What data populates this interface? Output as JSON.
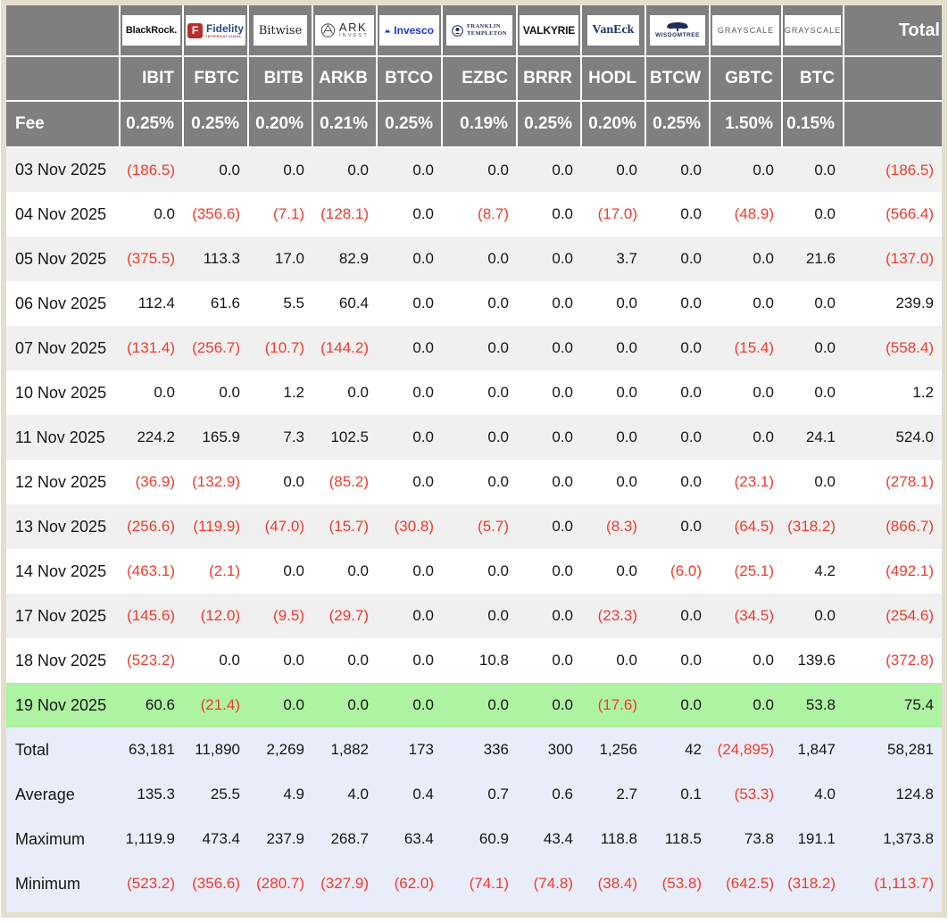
{
  "colors": {
    "header_bg": "#7f7f7f",
    "neg": "#f03b2c",
    "highlight": "#adf3a2",
    "stripe": "#f0f0f0",
    "summary_bg": "#e9edf9",
    "frame": "#e4decb"
  },
  "table": {
    "labels": {
      "fee": "Fee",
      "total": "Total"
    },
    "logos": [
      {
        "id": "blackrock",
        "text": "BlackRock."
      },
      {
        "id": "fidelity",
        "icon_letter": "F",
        "text": "Fidelity",
        "sub": "INTERNATIONAL"
      },
      {
        "id": "bitwise",
        "text": "Bitwise"
      },
      {
        "id": "ark-invest",
        "text": "ARK",
        "sub": "INVEST"
      },
      {
        "id": "invesco",
        "text": "Invesco"
      },
      {
        "id": "franklin-templeton",
        "text": "FRANKLIN",
        "sub": "TEMPLETON"
      },
      {
        "id": "valkyrie",
        "text": "VALKYRIE"
      },
      {
        "id": "vaneck",
        "text": "VanEck"
      },
      {
        "id": "wisdomtree",
        "text": "WISDOMTREE"
      },
      {
        "id": "grayscale",
        "text": "GRAYSCALE"
      },
      {
        "id": "grayscale-mini",
        "text": "GRAYSCALE"
      }
    ],
    "columns": [
      {
        "ticker": "IBIT",
        "fee": "0.25%"
      },
      {
        "ticker": "FBTC",
        "fee": "0.25%"
      },
      {
        "ticker": "BITB",
        "fee": "0.20%"
      },
      {
        "ticker": "ARKB",
        "fee": "0.21%"
      },
      {
        "ticker": "BTCO",
        "fee": "0.25%"
      },
      {
        "ticker": "EZBC",
        "fee": "0.19%"
      },
      {
        "ticker": "BRRR",
        "fee": "0.25%"
      },
      {
        "ticker": "HODL",
        "fee": "0.20%"
      },
      {
        "ticker": "BTCW",
        "fee": "0.25%"
      },
      {
        "ticker": "GBTC",
        "fee": "1.50%"
      },
      {
        "ticker": "BTC",
        "fee": "0.15%"
      }
    ],
    "rows": [
      {
        "date": "03 Nov 2025",
        "values": [
          "(186.5)",
          "0.0",
          "0.0",
          "0.0",
          "0.0",
          "0.0",
          "0.0",
          "0.0",
          "0.0",
          "0.0",
          "0.0",
          "(186.5)"
        ]
      },
      {
        "date": "04 Nov 2025",
        "values": [
          "0.0",
          "(356.6)",
          "(7.1)",
          "(128.1)",
          "0.0",
          "(8.7)",
          "0.0",
          "(17.0)",
          "0.0",
          "(48.9)",
          "0.0",
          "(566.4)"
        ]
      },
      {
        "date": "05 Nov 2025",
        "values": [
          "(375.5)",
          "113.3",
          "17.0",
          "82.9",
          "0.0",
          "0.0",
          "0.0",
          "3.7",
          "0.0",
          "0.0",
          "21.6",
          "(137.0)"
        ]
      },
      {
        "date": "06 Nov 2025",
        "values": [
          "112.4",
          "61.6",
          "5.5",
          "60.4",
          "0.0",
          "0.0",
          "0.0",
          "0.0",
          "0.0",
          "0.0",
          "0.0",
          "239.9"
        ]
      },
      {
        "date": "07 Nov 2025",
        "values": [
          "(131.4)",
          "(256.7)",
          "(10.7)",
          "(144.2)",
          "0.0",
          "0.0",
          "0.0",
          "0.0",
          "0.0",
          "(15.4)",
          "0.0",
          "(558.4)"
        ]
      },
      {
        "date": "10 Nov 2025",
        "values": [
          "0.0",
          "0.0",
          "1.2",
          "0.0",
          "0.0",
          "0.0",
          "0.0",
          "0.0",
          "0.0",
          "0.0",
          "0.0",
          "1.2"
        ]
      },
      {
        "date": "11 Nov 2025",
        "values": [
          "224.2",
          "165.9",
          "7.3",
          "102.5",
          "0.0",
          "0.0",
          "0.0",
          "0.0",
          "0.0",
          "0.0",
          "24.1",
          "524.0"
        ]
      },
      {
        "date": "12 Nov 2025",
        "values": [
          "(36.9)",
          "(132.9)",
          "0.0",
          "(85.2)",
          "0.0",
          "0.0",
          "0.0",
          "0.0",
          "0.0",
          "(23.1)",
          "0.0",
          "(278.1)"
        ]
      },
      {
        "date": "13 Nov 2025",
        "values": [
          "(256.6)",
          "(119.9)",
          "(47.0)",
          "(15.7)",
          "(30.8)",
          "(5.7)",
          "0.0",
          "(8.3)",
          "0.0",
          "(64.5)",
          "(318.2)",
          "(866.7)"
        ]
      },
      {
        "date": "14 Nov 2025",
        "values": [
          "(463.1)",
          "(2.1)",
          "0.0",
          "0.0",
          "0.0",
          "0.0",
          "0.0",
          "0.0",
          "(6.0)",
          "(25.1)",
          "4.2",
          "(492.1)"
        ]
      },
      {
        "date": "17 Nov 2025",
        "values": [
          "(145.6)",
          "(12.0)",
          "(9.5)",
          "(29.7)",
          "0.0",
          "0.0",
          "0.0",
          "(23.3)",
          "0.0",
          "(34.5)",
          "0.0",
          "(254.6)"
        ]
      },
      {
        "date": "18 Nov 2025",
        "values": [
          "(523.2)",
          "0.0",
          "0.0",
          "0.0",
          "0.0",
          "10.8",
          "0.0",
          "0.0",
          "0.0",
          "0.0",
          "139.6",
          "(372.8)"
        ]
      },
      {
        "date": "19 Nov 2025",
        "highlight": true,
        "values": [
          "60.6",
          "(21.4)",
          "0.0",
          "0.0",
          "0.0",
          "0.0",
          "0.0",
          "(17.6)",
          "0.0",
          "0.0",
          "53.8",
          "75.4"
        ]
      }
    ],
    "summary": [
      {
        "label": "Total",
        "values": [
          "63,181",
          "11,890",
          "2,269",
          "1,882",
          "173",
          "336",
          "300",
          "1,256",
          "42",
          "(24,895)",
          "1,847",
          "58,281"
        ]
      },
      {
        "label": "Average",
        "values": [
          "135.3",
          "25.5",
          "4.9",
          "4.0",
          "0.4",
          "0.7",
          "0.6",
          "2.7",
          "0.1",
          "(53.3)",
          "4.0",
          "124.8"
        ]
      },
      {
        "label": "Maximum",
        "values": [
          "1,119.9",
          "473.4",
          "237.9",
          "268.7",
          "63.4",
          "60.9",
          "43.4",
          "118.8",
          "118.5",
          "73.8",
          "191.1",
          "1,373.8"
        ]
      },
      {
        "label": "Minimum",
        "values": [
          "(523.2)",
          "(356.6)",
          "(280.7)",
          "(327.9)",
          "(62.0)",
          "(74.1)",
          "(74.8)",
          "(38.4)",
          "(53.8)",
          "(642.5)",
          "(318.2)",
          "(1,113.7)"
        ]
      }
    ]
  }
}
